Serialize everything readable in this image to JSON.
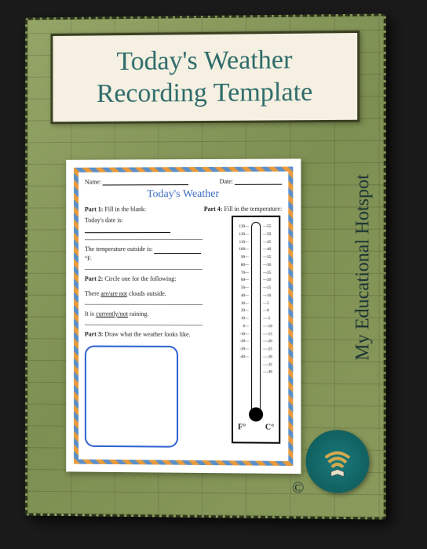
{
  "title": {
    "line1": "Today's Weather",
    "line2": "Recording Template"
  },
  "side_brand": "My Educational Hotspot",
  "copyright_symbol": "©",
  "worksheet": {
    "header": {
      "name_label": "Name:",
      "date_label": "Date:"
    },
    "title": "Today's Weather",
    "part1": {
      "label": "Part 1:",
      "instruction": "Fill in the blank:",
      "line1": "Today's date is:",
      "line2_a": "The temperature outside is:",
      "line2_b": "°F."
    },
    "part2": {
      "label": "Part 2:",
      "instruction": "Circle one for the following:",
      "line1_a": "There",
      "line1_b": "are/are not",
      "line1_c": "clouds outside.",
      "line2_a": "It is",
      "line2_b": "currently/not",
      "line2_c": "raining."
    },
    "part3": {
      "label": "Part 3:",
      "instruction": "Draw what the weather looks like."
    },
    "part4": {
      "label": "Part 4:",
      "instruction": "Fill in the temperature:"
    },
    "thermometer": {
      "unit_left": "F°",
      "unit_right": "C°",
      "ticks_f": [
        "130",
        "120",
        "110",
        "100",
        "90",
        "80",
        "70",
        "60",
        "50",
        "40",
        "30",
        "20",
        "10",
        "0",
        "-10",
        "-20",
        "-30",
        "-40"
      ],
      "ticks_c": [
        "55",
        "50",
        "45",
        "40",
        "35",
        "30",
        "25",
        "20",
        "15",
        "10",
        "5",
        "0",
        "-5",
        "-10",
        "-15",
        "-20",
        "-25",
        "-30",
        "-35",
        "-40"
      ]
    }
  },
  "colors": {
    "brick_bg": "#8a9a5c",
    "title_text": "#2e6b6b",
    "title_card_bg": "#f5f0e1",
    "worksheet_title": "#3b6bbf",
    "drawbox_border": "#2b5fd0",
    "logo_bg": "#1a7a7a"
  }
}
